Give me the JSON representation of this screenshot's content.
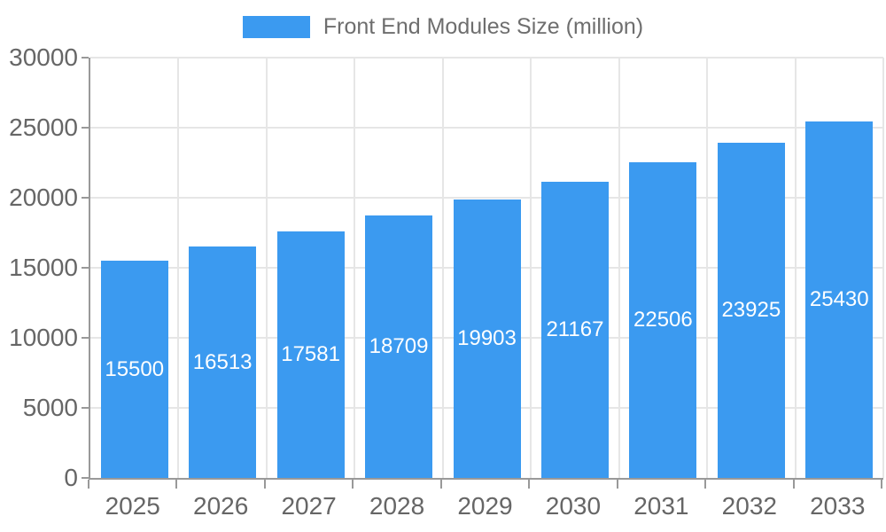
{
  "legend": {
    "label": "Front End Modules Size (million)"
  },
  "chart_data": {
    "type": "bar",
    "title": "",
    "series_name": "Front End Modules Size (million)",
    "categories": [
      "2025",
      "2026",
      "2027",
      "2028",
      "2029",
      "2030",
      "2031",
      "2032",
      "2033"
    ],
    "values": [
      15500,
      16513,
      17581,
      18709,
      19903,
      21167,
      22506,
      23925,
      25430
    ],
    "xlabel": "",
    "ylabel": "",
    "ylim": [
      0,
      30000
    ],
    "yticks": [
      0,
      5000,
      10000,
      15000,
      20000,
      25000,
      30000
    ],
    "grid": true,
    "legend_position": "top-center",
    "value_labels": "inside-center"
  },
  "colors": {
    "bar": "#3b9af0",
    "axis_line": "#999999",
    "grid_line": "#e6e6e6",
    "tick_text": "#666666",
    "legend_text": "#6e6e6e",
    "value_label_text": "#ffffff",
    "background": "#ffffff"
  }
}
